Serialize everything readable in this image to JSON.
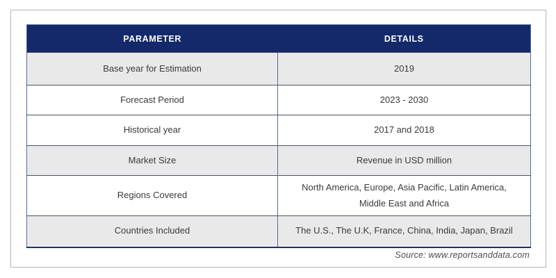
{
  "chart_data": {
    "type": "table",
    "columns": [
      "PARAMETER",
      "DETAILS"
    ],
    "rows": [
      {
        "parameter": "Base year for Estimation",
        "details": "2019",
        "shaded": true
      },
      {
        "parameter": "Forecast Period",
        "details": "2023 - 2030",
        "shaded": false
      },
      {
        "parameter": "Historical year",
        "details": "2017 and 2018",
        "shaded": false
      },
      {
        "parameter": "Market Size",
        "details": "Revenue in USD million",
        "shaded": true
      },
      {
        "parameter": "Regions Covered",
        "details": "North America, Europe, Asia Pacific, Latin America, Middle East and Africa",
        "shaded": false
      },
      {
        "parameter": "Countries Included",
        "details": "The U.S., The  U.K, France, China, India, Japan, Brazil",
        "shaded": true
      }
    ],
    "source_note": "Source: www.reportsanddata.com"
  },
  "colors": {
    "header_bg": "#13296a",
    "header_text": "#ffffff",
    "row_shaded_bg": "#e9e9e9",
    "row_white_bg": "#ffffff",
    "cell_text": "#3a3a3a",
    "border_vertical": "#4f6ba2",
    "border_horizontal": "#4c5263",
    "border_outer_bottom": "#1e3069",
    "frame_border": "#b5b5b5",
    "source_text": "#4d4d4d"
  }
}
